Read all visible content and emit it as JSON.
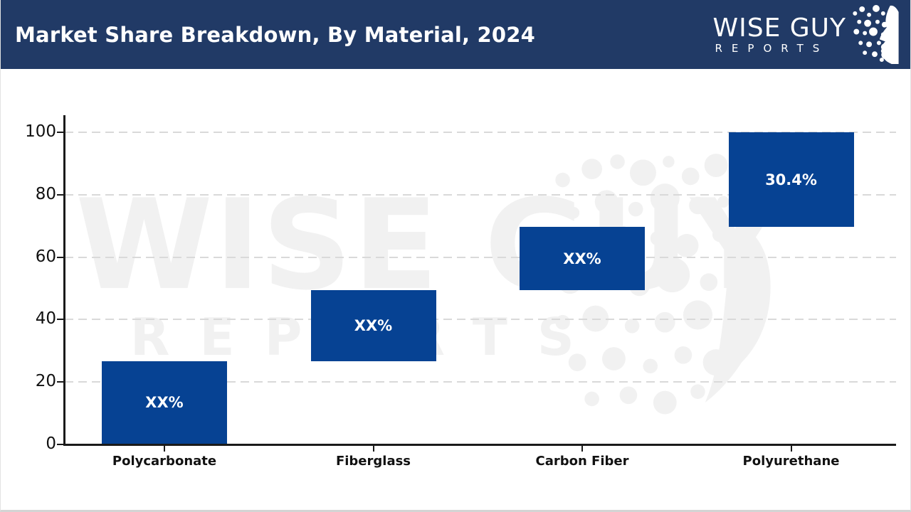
{
  "header": {
    "title": "Market Share Breakdown, By Material, 2024",
    "bg_color": "#213A66",
    "logo": {
      "wordmark": "WISE GUY",
      "subtitle": "REPORTS"
    }
  },
  "watermark": {
    "wordmark": "WISE GUY",
    "subtitle": "REPORTS"
  },
  "chart_data": {
    "type": "bar",
    "subtype": "waterfall",
    "title": "Market Share Breakdown, By Material, 2024",
    "categories": [
      "Polycarbonate",
      "Fiberglass",
      "Carbon Fiber",
      "Polyurethane"
    ],
    "series": [
      {
        "name": "Market Share (%)",
        "segments": [
          {
            "category": "Polycarbonate",
            "start": 0,
            "end": 26.7,
            "value": 26.7,
            "label": "XX%"
          },
          {
            "category": "Fiberglass",
            "start": 26.7,
            "end": 49.4,
            "value": 22.7,
            "label": "XX%"
          },
          {
            "category": "Carbon Fiber",
            "start": 49.4,
            "end": 69.6,
            "value": 20.2,
            "label": "XX%"
          },
          {
            "category": "Polyurethane",
            "start": 69.6,
            "end": 100,
            "value": 30.4,
            "label": "30.4%"
          }
        ]
      }
    ],
    "bar_labels": [
      "XX%",
      "XX%",
      "XX%",
      "30.4%"
    ],
    "ylim": [
      0,
      100
    ],
    "yticks": [
      0,
      20,
      40,
      60,
      80,
      100
    ],
    "xlabel": "",
    "ylabel": "",
    "grid": "horizontal-dashed",
    "legend": "none",
    "bar_color": "#064293",
    "bar_label_color": "#FFFFFF",
    "gridline_color": "#D9D9D9",
    "axis_color": "#1A1A1A"
  }
}
